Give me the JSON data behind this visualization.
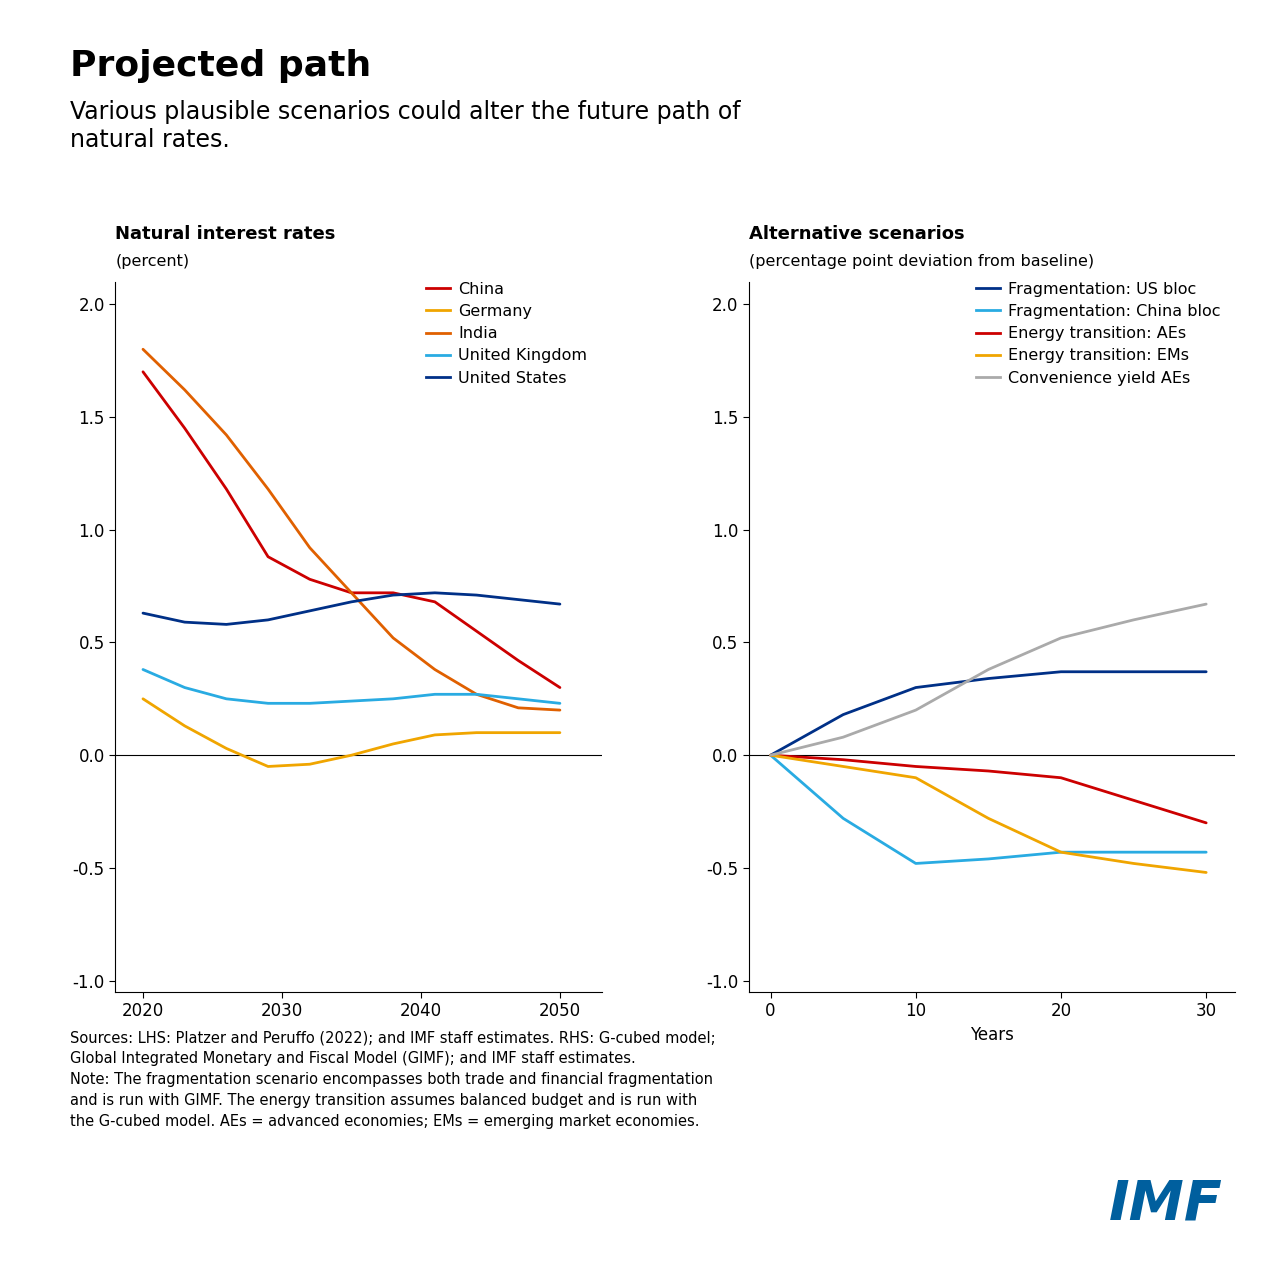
{
  "title": "Projected path",
  "subtitle": "Various plausible scenarios could alter the future path of\nnatural rates.",
  "lhs_title": "Natural interest rates",
  "lhs_subtitle": "(percent)",
  "lhs_xlim": [
    2018,
    2053
  ],
  "lhs_ylim": [
    -1.05,
    2.1
  ],
  "lhs_xticks": [
    2020,
    2030,
    2040,
    2050
  ],
  "lhs_yticks": [
    -1.0,
    -0.5,
    0.0,
    0.5,
    1.0,
    1.5,
    2.0
  ],
  "lhs_series": {
    "China": {
      "color": "#cc0000",
      "x": [
        2020,
        2023,
        2026,
        2029,
        2032,
        2035,
        2038,
        2041,
        2044,
        2047,
        2050
      ],
      "y": [
        1.7,
        1.45,
        1.18,
        0.88,
        0.78,
        0.72,
        0.72,
        0.68,
        0.55,
        0.42,
        0.3
      ]
    },
    "Germany": {
      "color": "#f0a500",
      "x": [
        2020,
        2023,
        2026,
        2029,
        2032,
        2035,
        2038,
        2041,
        2044,
        2047,
        2050
      ],
      "y": [
        0.25,
        0.13,
        0.03,
        -0.05,
        -0.04,
        0.0,
        0.05,
        0.09,
        0.1,
        0.1,
        0.1
      ]
    },
    "India": {
      "color": "#e06000",
      "x": [
        2020,
        2023,
        2026,
        2029,
        2032,
        2035,
        2038,
        2041,
        2044,
        2047,
        2050
      ],
      "y": [
        1.8,
        1.62,
        1.42,
        1.18,
        0.92,
        0.72,
        0.52,
        0.38,
        0.27,
        0.21,
        0.2
      ]
    },
    "United Kingdom": {
      "color": "#29abe2",
      "x": [
        2020,
        2023,
        2026,
        2029,
        2032,
        2035,
        2038,
        2041,
        2044,
        2047,
        2050
      ],
      "y": [
        0.38,
        0.3,
        0.25,
        0.23,
        0.23,
        0.24,
        0.25,
        0.27,
        0.27,
        0.25,
        0.23
      ]
    },
    "United States": {
      "color": "#003087",
      "x": [
        2020,
        2023,
        2026,
        2029,
        2032,
        2035,
        2038,
        2041,
        2044,
        2047,
        2050
      ],
      "y": [
        0.63,
        0.59,
        0.58,
        0.6,
        0.64,
        0.68,
        0.71,
        0.72,
        0.71,
        0.69,
        0.67
      ]
    }
  },
  "rhs_title": "Alternative scenarios",
  "rhs_subtitle": "(percentage point deviation from baseline)",
  "rhs_xlim": [
    -1.5,
    32
  ],
  "rhs_ylim": [
    -1.05,
    2.1
  ],
  "rhs_xticks": [
    0,
    10,
    20,
    30
  ],
  "rhs_yticks": [
    -1.0,
    -0.5,
    0.0,
    0.5,
    1.0,
    1.5,
    2.0
  ],
  "rhs_xlabel": "Years",
  "rhs_series": {
    "Fragmentation: US bloc": {
      "color": "#003087",
      "x": [
        0,
        5,
        10,
        15,
        20,
        25,
        30
      ],
      "y": [
        0.0,
        0.18,
        0.3,
        0.34,
        0.37,
        0.37,
        0.37
      ]
    },
    "Fragmentation: China bloc": {
      "color": "#29abe2",
      "x": [
        0,
        5,
        10,
        15,
        20,
        25,
        30
      ],
      "y": [
        0.0,
        -0.28,
        -0.48,
        -0.46,
        -0.43,
        -0.43,
        -0.43
      ]
    },
    "Energy transition: AEs": {
      "color": "#cc0000",
      "x": [
        0,
        5,
        10,
        15,
        20,
        25,
        30
      ],
      "y": [
        0.0,
        -0.02,
        -0.05,
        -0.07,
        -0.1,
        -0.2,
        -0.3
      ]
    },
    "Energy transition: EMs": {
      "color": "#f0a500",
      "x": [
        0,
        5,
        10,
        15,
        20,
        25,
        30
      ],
      "y": [
        0.0,
        -0.05,
        -0.1,
        -0.28,
        -0.43,
        -0.48,
        -0.52
      ]
    },
    "Convenience yield AEs": {
      "color": "#aaaaaa",
      "x": [
        0,
        5,
        10,
        15,
        20,
        25,
        30
      ],
      "y": [
        0.0,
        0.08,
        0.2,
        0.38,
        0.52,
        0.6,
        0.67
      ]
    }
  },
  "source_text": "Sources: LHS: Platzer and Peruffo (2022); and IMF staff estimates. RHS: G-cubed model;\nGlobal Integrated Monetary and Fiscal Model (GIMF); and IMF staff estimates.\nNote: The fragmentation scenario encompasses both trade and financial fragmentation\nand is run with GIMF. The energy transition assumes balanced budget and is run with\nthe G-cubed model. AEs = advanced economies; EMs = emerging market economies.",
  "imf_color": "#005f9e",
  "background_color": "#ffffff",
  "line_width": 2.0
}
